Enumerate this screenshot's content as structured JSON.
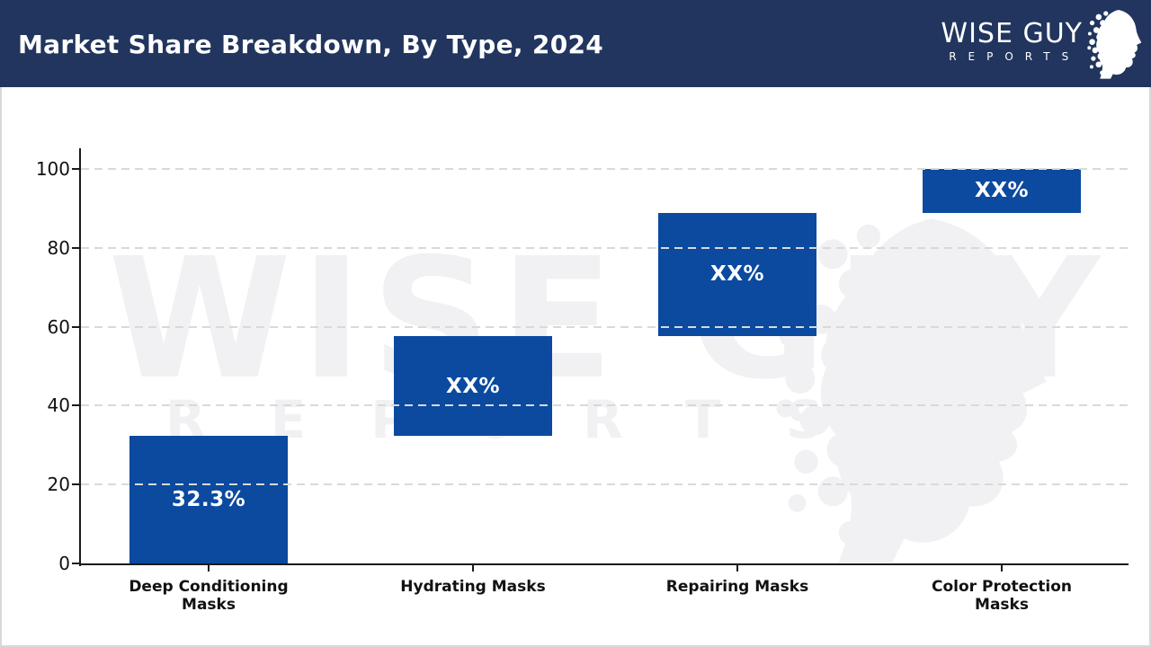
{
  "header": {
    "title": "Market Share Breakdown, By Type, 2024",
    "logo": {
      "line1": "WISE GUY",
      "line2": "REPORTS"
    }
  },
  "watermark": {
    "line1": "WISE GUY",
    "line2": "REPORTS"
  },
  "colors": {
    "header_bg": "#21355e",
    "bar": "#0b4a9f",
    "grid": "#d9d9d9",
    "axis": "#1a1a1a",
    "watermark": "#f1f1f3",
    "bar_label": "#ffffff"
  },
  "chart_data": {
    "type": "bar",
    "subtype": "waterfall",
    "title": "Market Share Breakdown, By Type, 2024",
    "categories": [
      "Deep Conditioning Masks",
      "Hydrating Masks",
      "Repairing Masks",
      "Color Protection Masks"
    ],
    "segments": [
      {
        "category": "Deep Conditioning Masks",
        "start": 0,
        "end": 32.3,
        "label": "32.3%"
      },
      {
        "category": "Hydrating Masks",
        "start": 32.3,
        "end": 57.6,
        "label": "XX%"
      },
      {
        "category": "Repairing Masks",
        "start": 57.6,
        "end": 88.9,
        "label": "XX%"
      },
      {
        "category": "Color Protection Masks",
        "start": 88.9,
        "end": 100,
        "label": "XX%"
      }
    ],
    "xlabel": "",
    "ylabel": "",
    "ylim": [
      0,
      100
    ],
    "yticks": [
      0,
      20,
      40,
      60,
      80,
      100
    ],
    "grid": "horizontal-dashed-above-bars",
    "legend": "none"
  }
}
